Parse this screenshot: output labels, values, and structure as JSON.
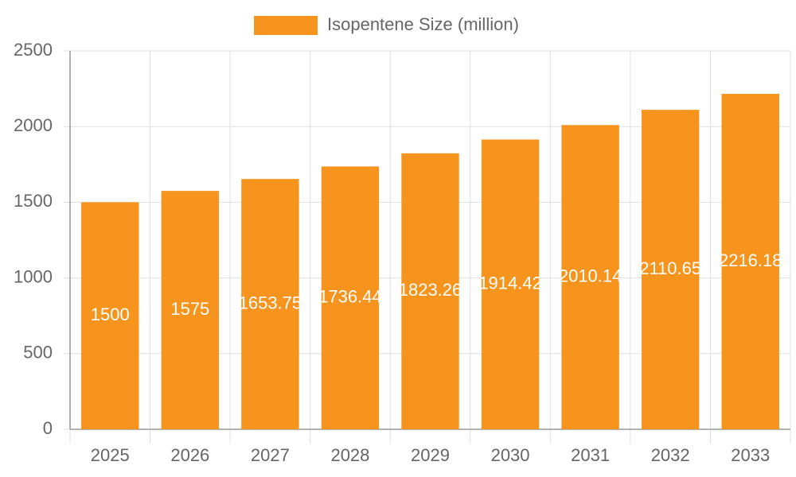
{
  "chart_data": {
    "type": "bar",
    "categories": [
      "2025",
      "2026",
      "2027",
      "2028",
      "2029",
      "2030",
      "2031",
      "2032",
      "2033"
    ],
    "series": [
      {
        "name": "Isopentene Size (million)",
        "color": "#f7941d",
        "values": [
          1500,
          1575,
          1653.75,
          1736.44,
          1823.26,
          1914.42,
          2010.14,
          2110.65,
          2216.18
        ]
      }
    ],
    "ylim": [
      0,
      2500
    ],
    "yticks": [
      0,
      500,
      1000,
      1500,
      2000,
      2500
    ],
    "grid": true,
    "legend": "top",
    "data_labels": true
  }
}
